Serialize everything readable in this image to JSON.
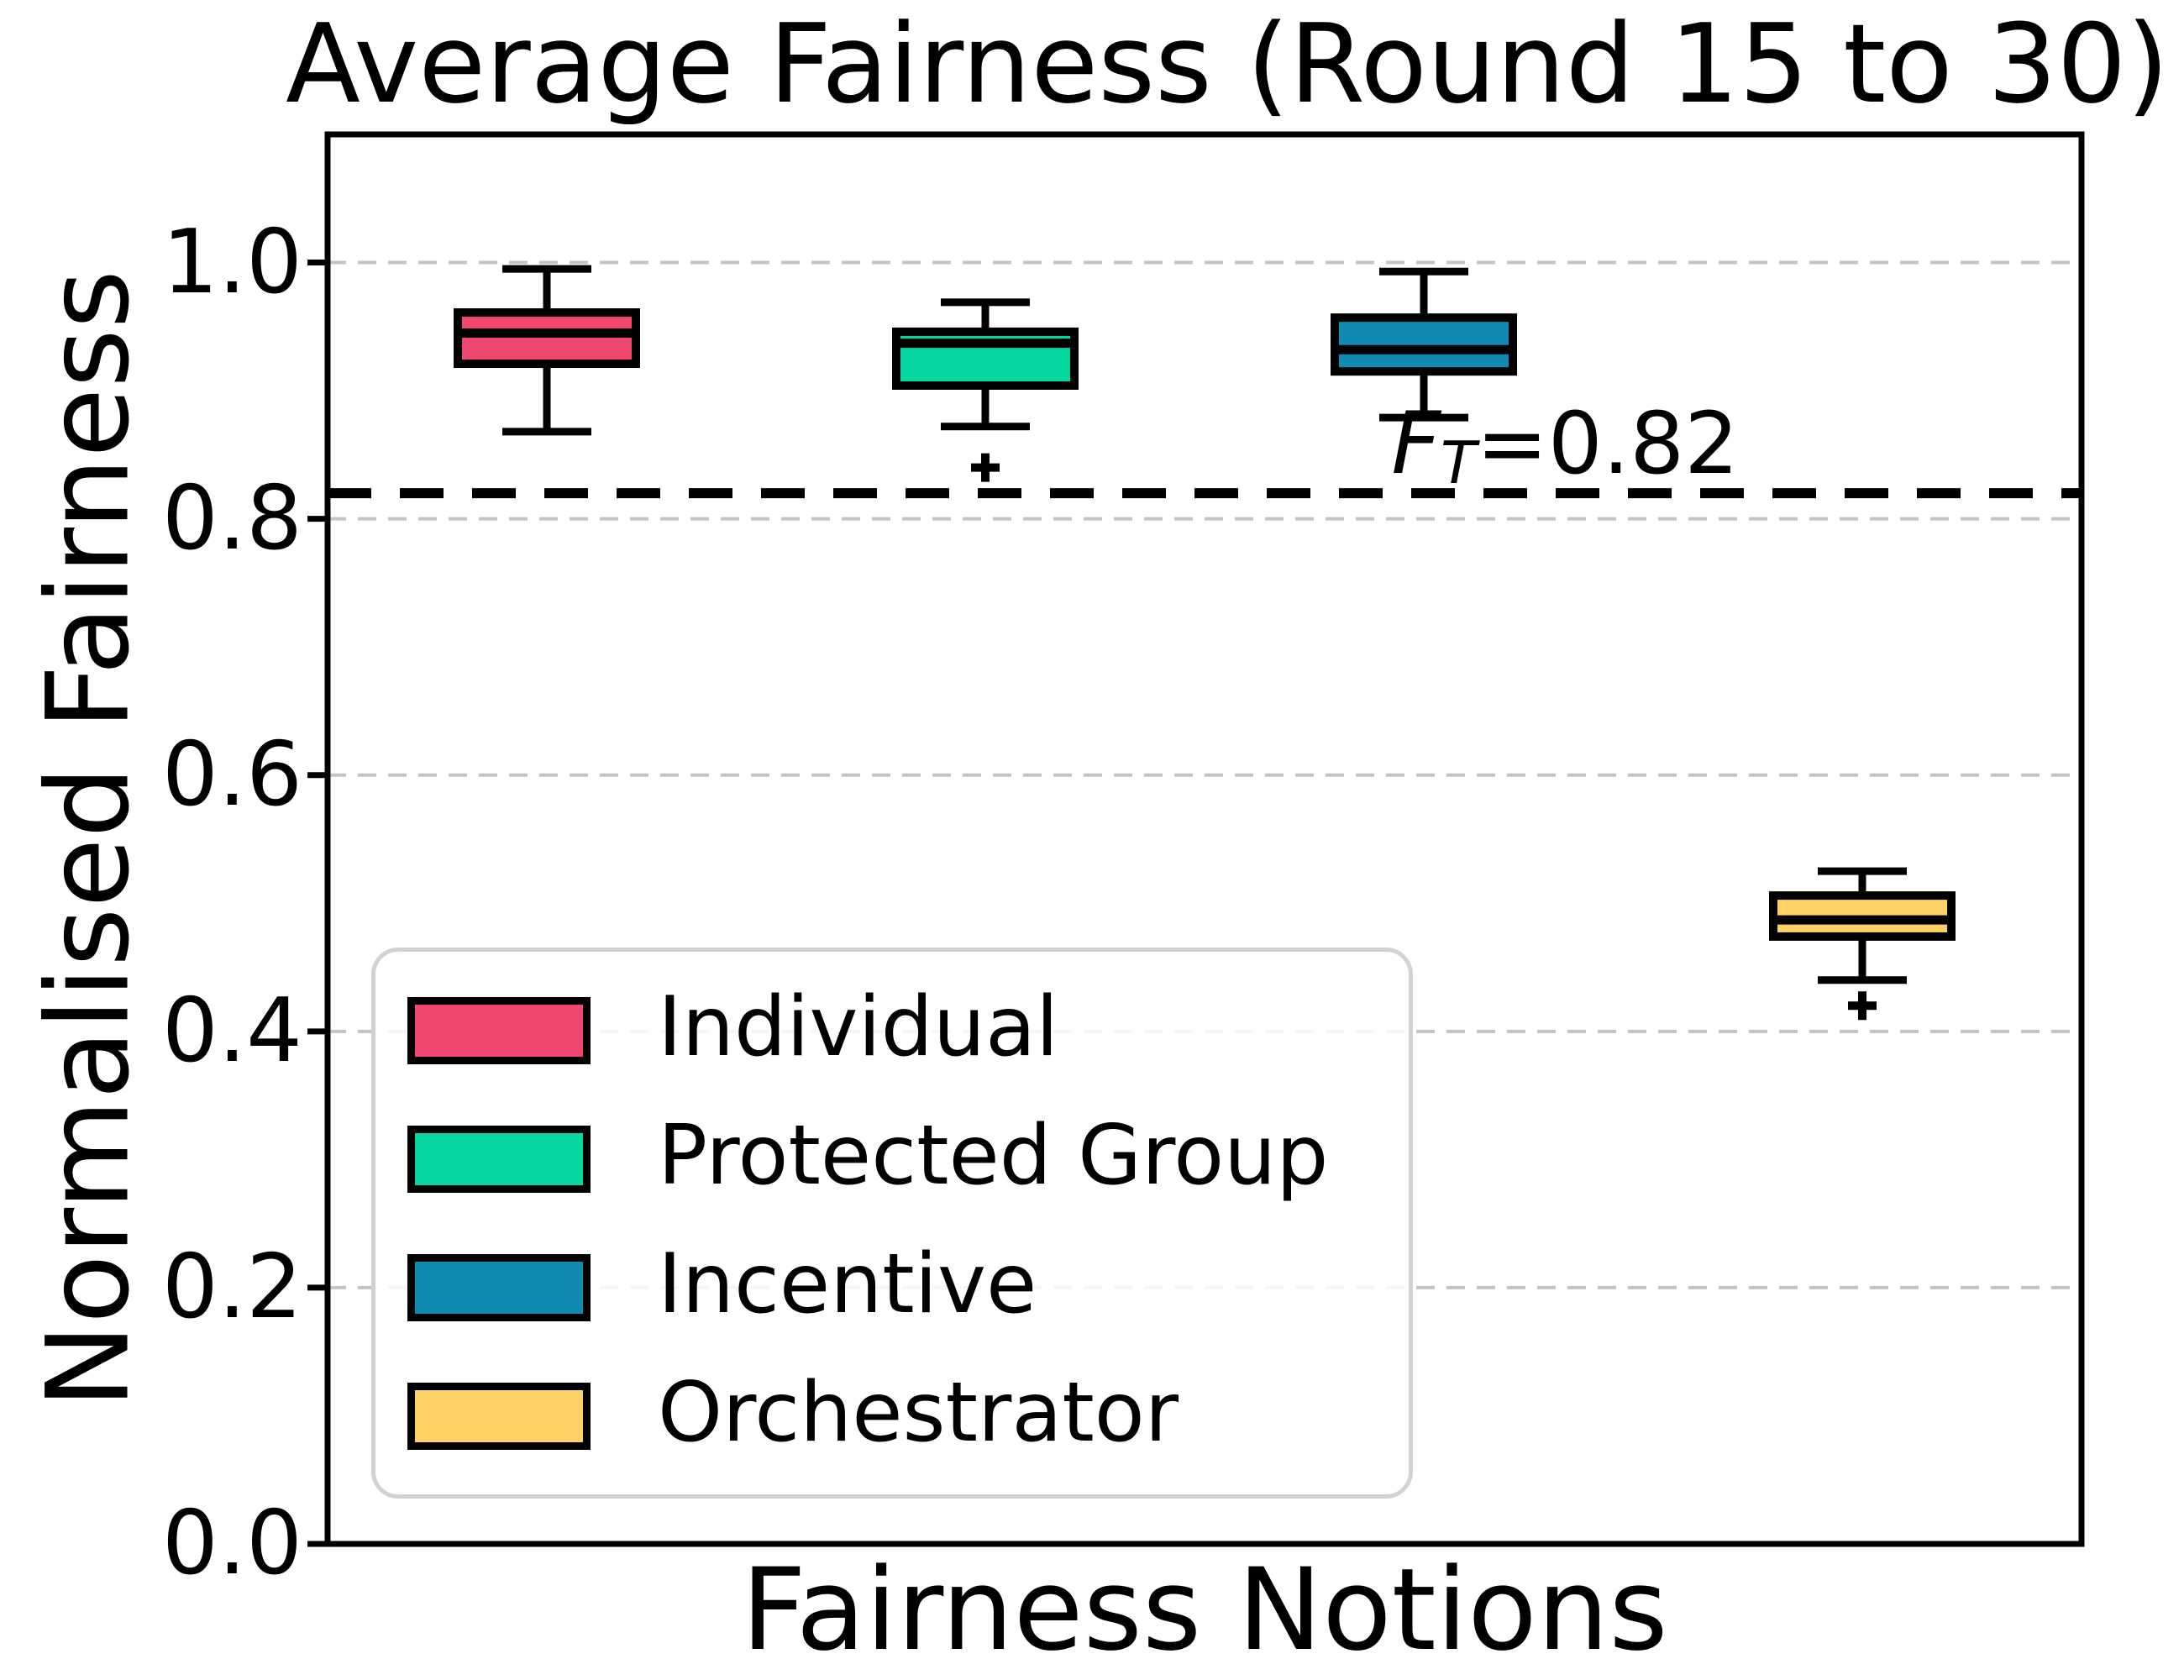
{
  "chart_data": {
    "type": "boxplot",
    "title": "Average Fairness (Round 15 to 30)",
    "xlabel": "Fairness Notions",
    "ylabel": "Normalised Fairness",
    "ylim": [
      0.0,
      1.1
    ],
    "yticks": [
      0.0,
      0.2,
      0.4,
      0.6,
      0.8,
      1.0
    ],
    "ytick_labels": [
      "0.0",
      "0.2",
      "0.4",
      "0.6",
      "0.8",
      "1.0"
    ],
    "grid": "horizontal dashed gridlines at labeled y ticks",
    "legend_position": "lower left",
    "series": [
      {
        "name": "Individual",
        "color": "#EF476F",
        "whislo": 0.868,
        "q1": 0.921,
        "med": 0.945,
        "q3": 0.961,
        "whishi": 0.995,
        "fliers": []
      },
      {
        "name": "Protected Group",
        "color": "#06D6A0",
        "whislo": 0.872,
        "q1": 0.904,
        "med": 0.937,
        "q3": 0.946,
        "whishi": 0.969,
        "fliers": [
          0.84
        ]
      },
      {
        "name": "Incentive",
        "color": "#118AB2",
        "whislo": 0.879,
        "q1": 0.915,
        "med": 0.932,
        "q3": 0.957,
        "whishi": 0.993,
        "fliers": []
      },
      {
        "name": "Orchestrator",
        "color": "#FFD166",
        "whislo": 0.44,
        "q1": 0.474,
        "med": 0.487,
        "q3": 0.506,
        "whishi": 0.525,
        "fliers": [
          0.42
        ]
      }
    ],
    "threshold_line": {
      "value": 0.82,
      "label": "F_T=0.82",
      "style": "black dashed"
    },
    "annotation": {
      "f": "F",
      "sub": "T",
      "rest": "=0.82"
    }
  },
  "colors": {
    "background": "#ffffff",
    "spine": "#000000",
    "gridline": "#c4c4c4",
    "threshold": "#000000",
    "legend_border": "#d2d2d2"
  }
}
